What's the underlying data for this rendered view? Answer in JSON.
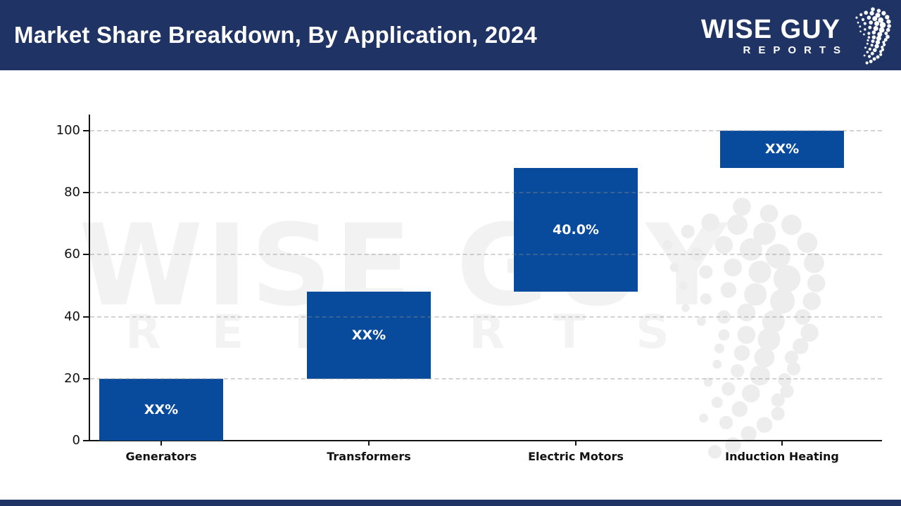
{
  "header": {
    "title": "Market Share Breakdown, By Application, 2024",
    "logo": {
      "line1": "WISE GUY",
      "line2": "REPORTS"
    }
  },
  "watermark": {
    "line1": "WISE GUY",
    "line2": "REPORTS"
  },
  "chart_data": {
    "type": "bar",
    "subtype": "floating-waterfall",
    "title": "Market Share Breakdown, By Application, 2024",
    "categories": [
      "Generators",
      "Transformers",
      "Electric Motors",
      "Induction Heating"
    ],
    "segments": [
      [
        0,
        20
      ],
      [
        20,
        48
      ],
      [
        48,
        88
      ],
      [
        88,
        100
      ]
    ],
    "values": [
      20,
      28,
      40,
      12
    ],
    "bar_labels": [
      "XX%",
      "XX%",
      "40.0%",
      "XX%"
    ],
    "yticks": [
      0,
      20,
      40,
      60,
      80,
      100
    ],
    "ylim": [
      0,
      105
    ],
    "xlabel": "",
    "ylabel": "",
    "grid": "horizontal-dashed",
    "legend": "none"
  },
  "colors": {
    "header_bg": "#1f3464",
    "footer_bg": "#1f3464",
    "bar": "#084a9c",
    "bar_label": "#ffffff",
    "axis": "#141414",
    "watermark": "#f2f2f2"
  }
}
